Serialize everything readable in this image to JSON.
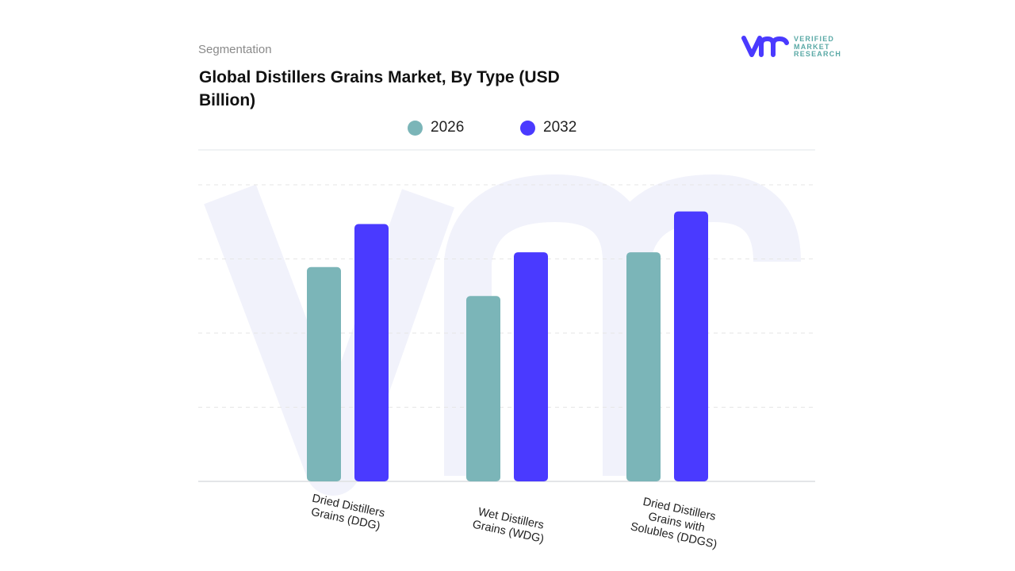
{
  "header": {
    "section": "Segmentation",
    "title": "Global Distillers Grains Market, By Type (USD Billion)"
  },
  "logo": {
    "text": [
      "VERIFIED",
      "MARKET",
      "RESEARCH"
    ]
  },
  "colors": {
    "2026": "#7bb5b8",
    "2032": "#4a3aff",
    "watermark": "#f1f2fb"
  },
  "chart_data": {
    "type": "bar",
    "title": "Global Distillers Grains Market, By Type (USD Billion)",
    "categories": [
      "Dried Distillers Grains (DDG)",
      "Wet Distillers Grains (WDG)",
      "Dried Distillers Grains with Solubles (DDGS)"
    ],
    "series": [
      {
        "name": "2026",
        "values": [
          2.89,
          2.5,
          3.09
        ]
      },
      {
        "name": "2032",
        "values": [
          3.47,
          3.09,
          3.64
        ]
      }
    ],
    "ylim": [
      0,
      4
    ],
    "grid": true,
    "legend": "top-center",
    "xlabel": "",
    "ylabel": ""
  }
}
